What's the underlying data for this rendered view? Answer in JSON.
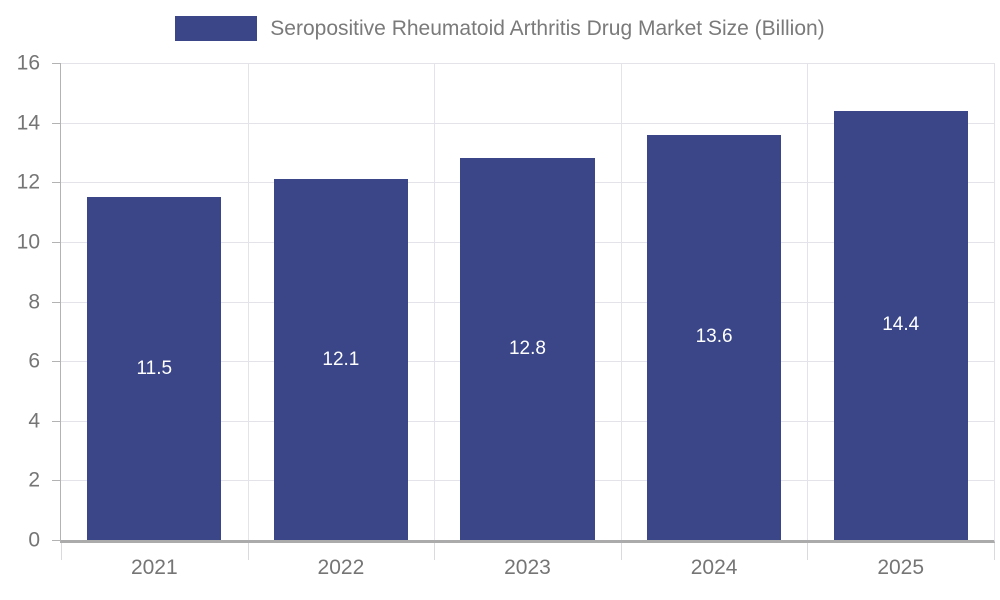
{
  "legend": {
    "label": "Seropositive Rheumatoid Arthritis Drug Market Size (Billion)"
  },
  "colors": {
    "bar": "#3a4688",
    "grid": "#e3e3e9",
    "axis": "#b3b3b3",
    "axis_strong": "#ababab",
    "tick_label": "#757575",
    "legend_text": "#7a7a7a",
    "value_label": "#ffffff",
    "background": "#ffffff"
  },
  "chart_data": {
    "type": "bar",
    "title": "Seropositive Rheumatoid Arthritis Drug Market Size (Billion)",
    "series_name": "Seropositive Rheumatoid Arthritis Drug Market Size (Billion)",
    "categories": [
      "2021",
      "2022",
      "2023",
      "2024",
      "2025"
    ],
    "values": [
      11.5,
      12.1,
      12.8,
      13.6,
      14.4
    ],
    "value_label_format": "one-decimal",
    "value_label_position": "inside-center",
    "xlabel": "",
    "ylabel": "",
    "ylim": [
      0,
      16
    ],
    "yticks": [
      0,
      2,
      4,
      6,
      8,
      10,
      12,
      14,
      16
    ],
    "grid": true,
    "legend_position": "top-center"
  }
}
